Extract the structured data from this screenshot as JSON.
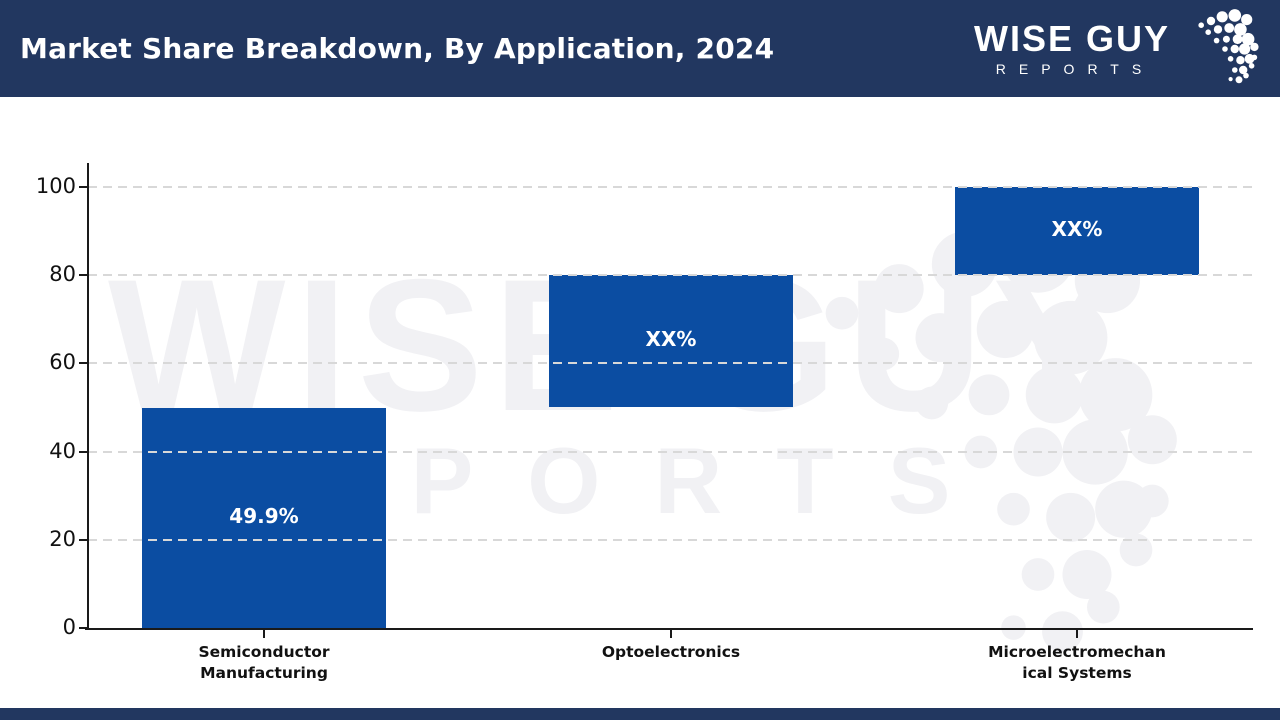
{
  "header": {
    "title": "Market Share Breakdown, By Application, 2024",
    "logo": {
      "line1": "WISE GUY",
      "line2": "REPORTS"
    }
  },
  "watermark": {
    "line1": "WISE GUY",
    "line2": "REPORTS"
  },
  "chart_data": {
    "type": "bar",
    "subtype": "waterfall",
    "title": "Market Share Breakdown, By Application, 2024",
    "categories": [
      "Semiconductor Manufacturing",
      "Optoelectronics",
      "Microelectromechanical Systems"
    ],
    "categories_display": [
      [
        "Semiconductor",
        "Manufacturing"
      ],
      [
        "Optoelectronics"
      ],
      [
        "Microelectromechan",
        "ical Systems"
      ]
    ],
    "segments": [
      {
        "category": "Semiconductor Manufacturing",
        "start": 0,
        "end": 50,
        "label": "49.9%"
      },
      {
        "category": "Optoelectronics",
        "start": 50,
        "end": 80,
        "label": "XX%"
      },
      {
        "category": "Microelectromechanical Systems",
        "start": 80,
        "end": 100,
        "label": "XX%"
      }
    ],
    "yticks": [
      0,
      20,
      40,
      60,
      80,
      100
    ],
    "ylim": [
      0,
      105
    ],
    "xlabel": "",
    "ylabel": "",
    "legend": "none",
    "grid": "horizontal-dashed",
    "colors": {
      "bar": "#0b4da2",
      "grid": "#d8d8d8",
      "axis": "#1a1a1a",
      "value_label": "#ffffff",
      "header_bg": "#223760",
      "footer_bg": "#223760",
      "watermark": "#f1f1f4",
      "background": "#ffffff"
    }
  }
}
